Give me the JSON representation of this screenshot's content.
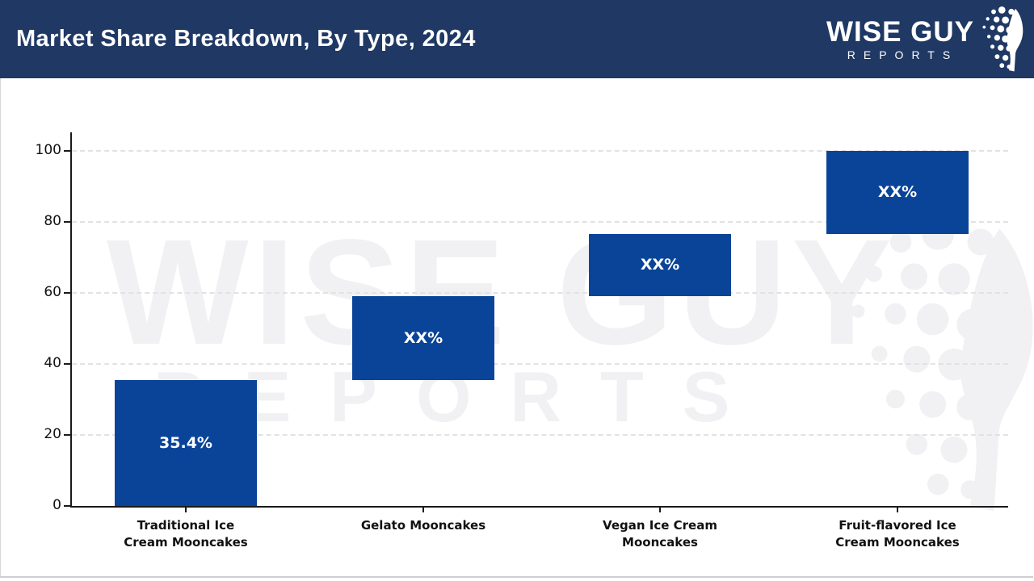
{
  "header": {
    "title": "Market Share Breakdown, By Type, 2024",
    "bg_color": "#1f3864",
    "logo": {
      "line1": "WISE GUY",
      "line2": "REPORTS"
    }
  },
  "watermark": {
    "line1": "WISE GUY",
    "line2": "REPORTS"
  },
  "chart_data": {
    "type": "bar",
    "subtype": "waterfall",
    "title": "Market Share Breakdown, By Type, 2024",
    "categories": [
      "Traditional Ice Cream Mooncakes",
      "Gelato Mooncakes",
      "Vegan Ice Cream Mooncakes",
      "Fruit-flavored Ice Cream Mooncakes"
    ],
    "categories_lines": [
      [
        "Traditional Ice",
        "Cream Mooncakes"
      ],
      [
        "Gelato Mooncakes"
      ],
      [
        "Vegan Ice Cream",
        "Mooncakes"
      ],
      [
        "Fruit-flavored Ice",
        "Cream Mooncakes"
      ]
    ],
    "bars": [
      {
        "category": "Traditional Ice Cream Mooncakes",
        "start": 0,
        "end": 35.4,
        "label": "35.4%"
      },
      {
        "category": "Gelato Mooncakes",
        "start": 35.4,
        "end": 59.1,
        "label": "XX%"
      },
      {
        "category": "Vegan Ice Cream Mooncakes",
        "start": 59.1,
        "end": 76.6,
        "label": "XX%"
      },
      {
        "category": "Fruit-flavored Ice Cream Mooncakes",
        "start": 76.6,
        "end": 100,
        "label": "XX%"
      }
    ],
    "xlabel": "",
    "ylabel": "",
    "ylim": [
      0,
      100
    ],
    "yticks": [
      0,
      20,
      40,
      60,
      80,
      100
    ],
    "grid": "horizontal dashed",
    "legend": "none",
    "bar_color": "#0a4499",
    "bar_label_color": "#ffffff"
  }
}
